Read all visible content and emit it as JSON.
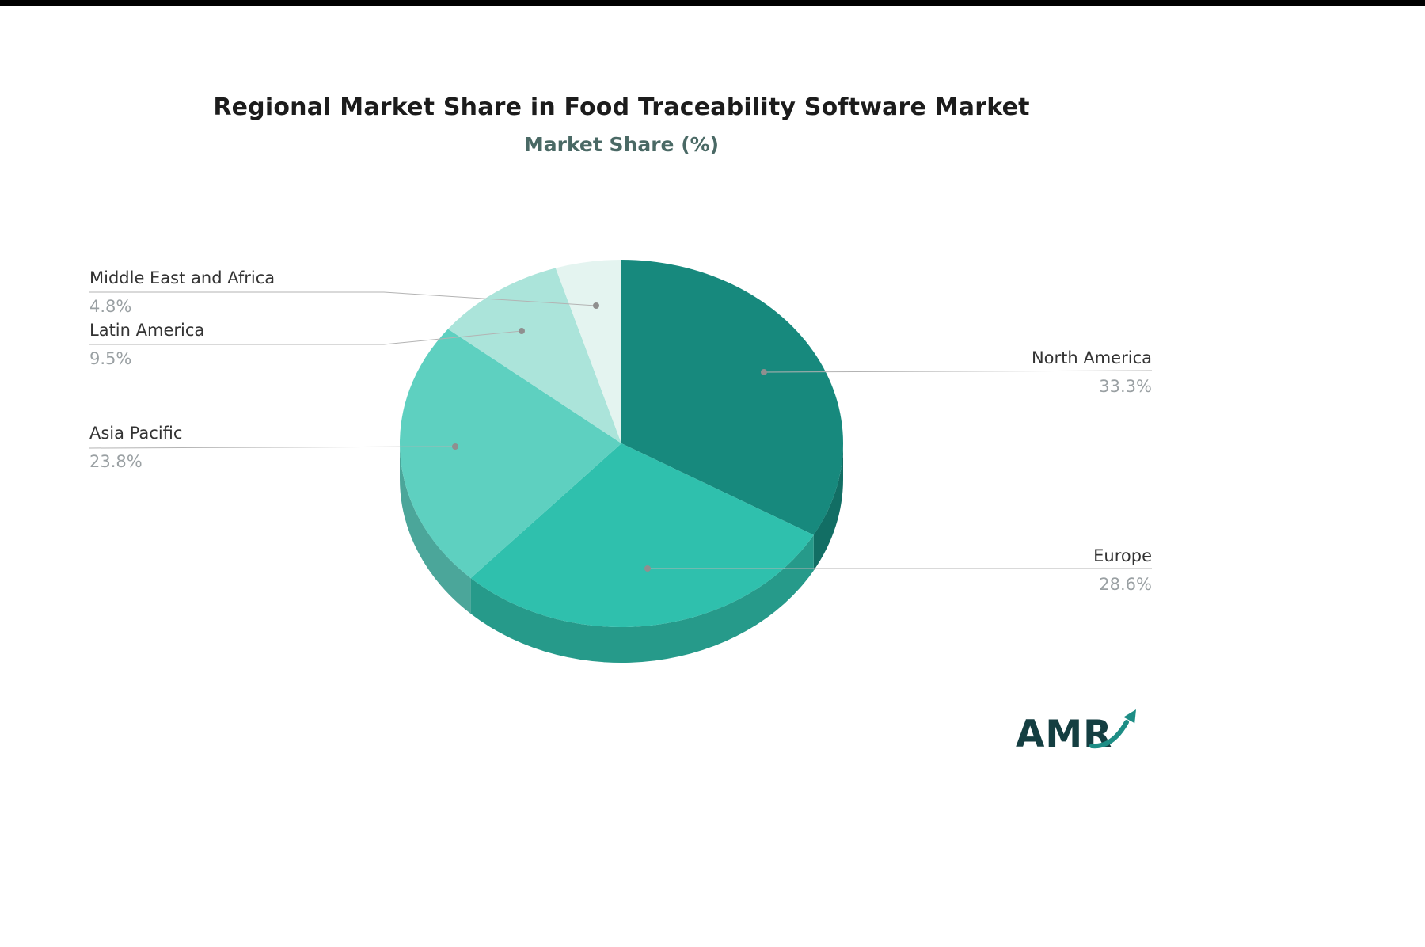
{
  "colors": {
    "background": "#ffffff",
    "top_bar": "#000000",
    "title": "#1c1c1c",
    "subtitle": "#4a6965",
    "label_text": "#333333",
    "percent_text": "#9aa0a3",
    "leader_line": "#b3b3b3",
    "leader_dot": "#8f8f8f",
    "logo_text": "#143e41",
    "logo_arrow": "#1d8d85"
  },
  "logo": {
    "text": "AMR"
  },
  "chart_data": {
    "type": "pie",
    "title": "Regional Market Share in Food Traceability Software Market",
    "subtitle": "Market Share (%)",
    "unit": "%",
    "start_angle_deg": -90,
    "direction": "clockwise",
    "legend_position": "none",
    "labels": "leader-lines",
    "style": "3d-pie",
    "slices": [
      {
        "label": "North America",
        "value": 33.3,
        "percent_label": "33.3%",
        "color": "#17897d"
      },
      {
        "label": "Europe",
        "value": 28.6,
        "percent_label": "28.6%",
        "color": "#2fc0ad"
      },
      {
        "label": "Asia Pacific",
        "value": 23.8,
        "percent_label": "23.8%",
        "color": "#5ed0c0"
      },
      {
        "label": "Latin America",
        "value": 9.5,
        "percent_label": "9.5%",
        "color": "#abe4da"
      },
      {
        "label": "Middle East and Africa",
        "value": 4.8,
        "percent_label": "4.8%",
        "color": "#e4f4f0"
      }
    ]
  }
}
